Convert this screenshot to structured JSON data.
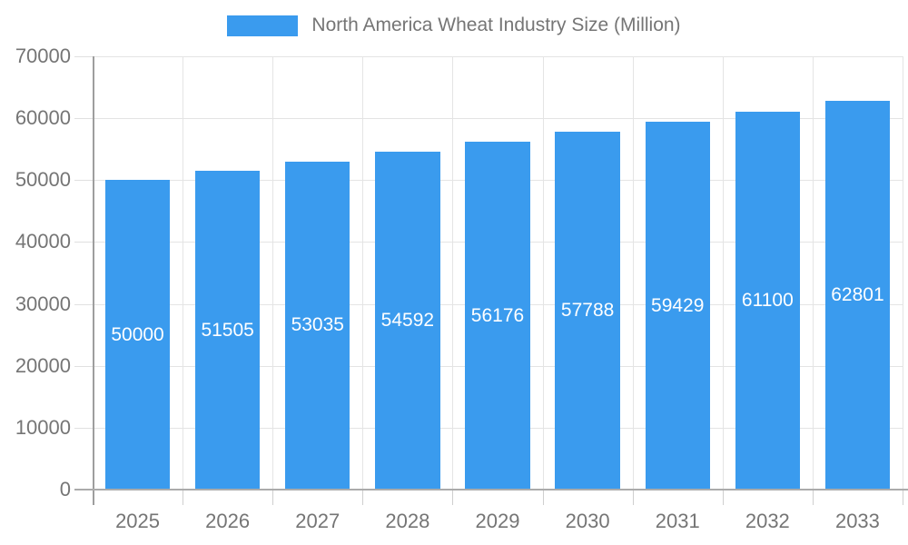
{
  "chart_data": {
    "type": "bar",
    "title": "North America Wheat Industry Size (Million)",
    "legend_entries": [
      "North America Wheat Industry Size (Million)"
    ],
    "categories": [
      "2025",
      "2026",
      "2027",
      "2028",
      "2029",
      "2030",
      "2031",
      "2032",
      "2033"
    ],
    "values": [
      50000,
      51505,
      53035,
      54592,
      56176,
      57788,
      59429,
      61100,
      62801
    ],
    "bar_value_labels": [
      "50000",
      "51505",
      "53035",
      "54592",
      "56176",
      "57788",
      "59429",
      "61100",
      "62801"
    ],
    "xlabel": "",
    "ylabel": "",
    "ylim": [
      0,
      70000
    ],
    "ytick_step": 10000,
    "ytick_labels": [
      "0",
      "10000",
      "20000",
      "30000",
      "40000",
      "50000",
      "60000",
      "70000"
    ],
    "grid": true,
    "legend_position": "top",
    "colors": {
      "bar": "#3A9BEE",
      "grid": "#E4E4E4",
      "tick": "#CFCFCF",
      "axis": "#9E9E9E",
      "text": "#757575",
      "bar_label": "#FFFFFF",
      "background": "#FFFFFF"
    }
  }
}
